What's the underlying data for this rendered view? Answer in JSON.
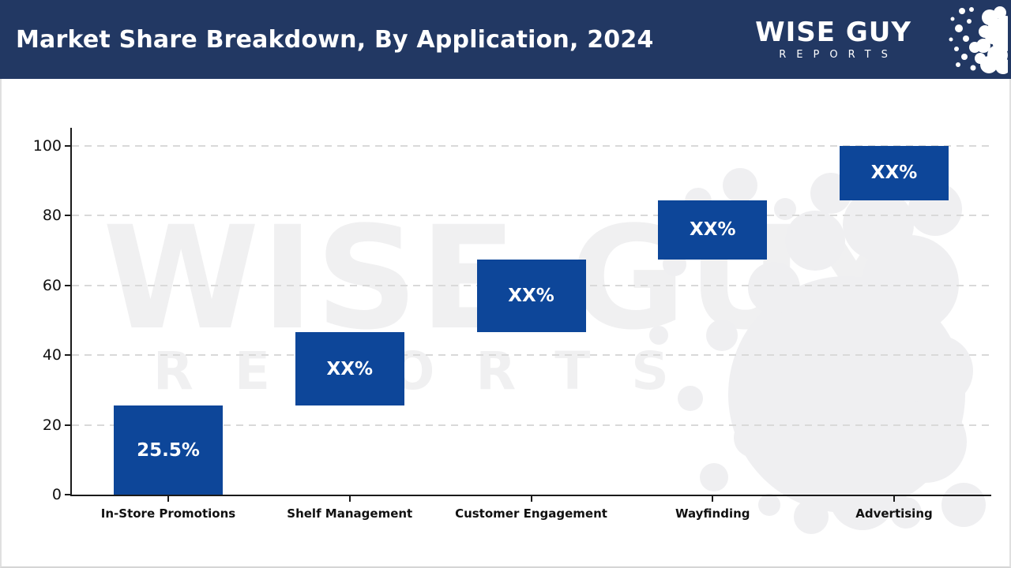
{
  "header": {
    "title": "Market Share Breakdown, By Application, 2024",
    "logo": {
      "name": "WISE GUY",
      "subtitle": "REPORTS"
    }
  },
  "watermark": {
    "line1": "WISE GUY",
    "line2": "REPORTS"
  },
  "chart_data": {
    "type": "bar",
    "subtype": "waterfall",
    "title": "Market Share Breakdown, By Application, 2024",
    "xlabel": "",
    "ylabel": "",
    "ylim": [
      0,
      105
    ],
    "yticks": [
      0,
      20,
      40,
      60,
      80,
      100
    ],
    "grid": "horizontal-dashed",
    "legend": "none",
    "bar_color": "#0d4699",
    "categories": [
      "In-Store Promotions",
      "Shelf Management",
      "Customer Engagement",
      "Wayfinding",
      "Advertising"
    ],
    "bars": [
      {
        "category": "In-Store Promotions",
        "start": 0,
        "end": 25.5,
        "label": "25.5%"
      },
      {
        "category": "Shelf Management",
        "start": 25.5,
        "end": 46.5,
        "label": "XX%"
      },
      {
        "category": "Customer Engagement",
        "start": 46.5,
        "end": 67.5,
        "label": "XX%"
      },
      {
        "category": "Wayfinding",
        "start": 67.5,
        "end": 84.5,
        "label": "XX%"
      },
      {
        "category": "Advertising",
        "start": 84.5,
        "end": 100,
        "label": "XX%"
      }
    ]
  },
  "colors": {
    "header_bg": "#223863",
    "bar": "#0d4699",
    "gridline": "#d9d9d9",
    "axis": "#1a1a1a",
    "watermark": "#f0f0f1",
    "title_text": "#ffffff"
  }
}
